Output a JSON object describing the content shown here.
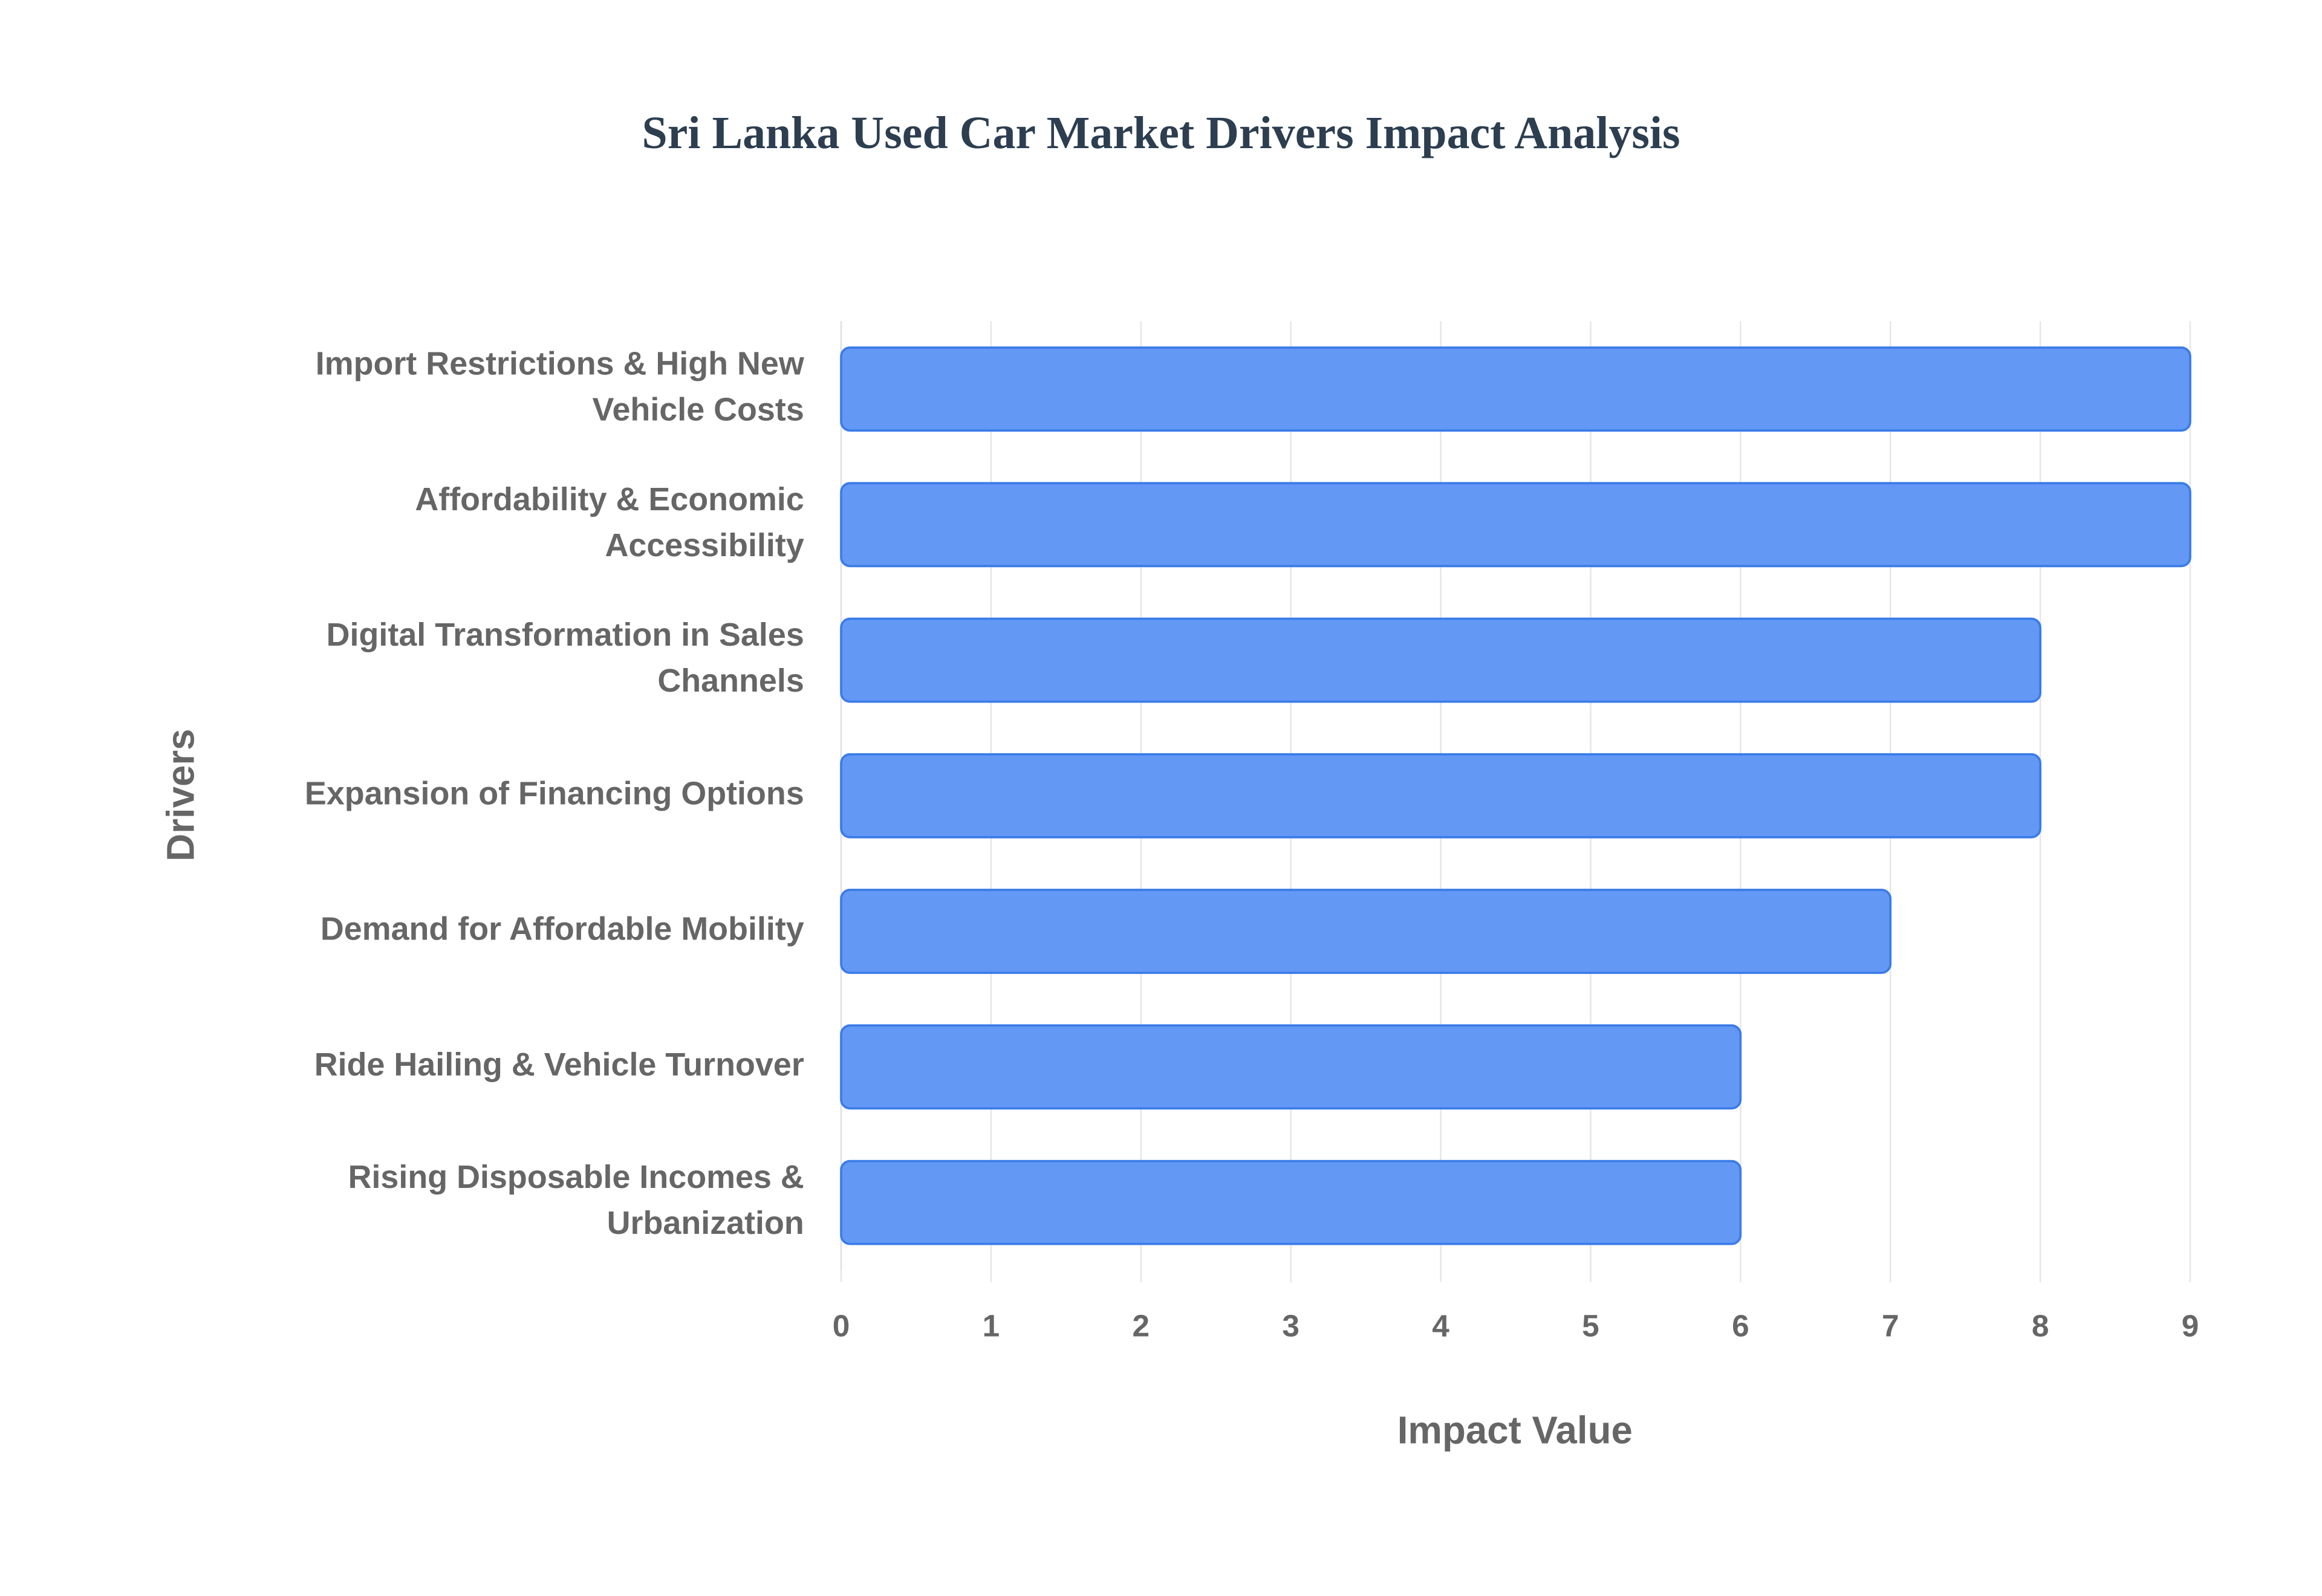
{
  "chart_data": {
    "type": "bar",
    "orientation": "horizontal",
    "title": "Sri Lanka Used Car Market Drivers Impact Analysis",
    "x_label": "Impact Value",
    "y_label": "Drivers",
    "categories": [
      "Import Restrictions & High New Vehicle Costs",
      "Affordability & Economic Accessibility",
      "Digital Transformation in Sales Channels",
      "Expansion of Financing Options",
      "Demand for Affordable Mobility",
      "Ride Hailing & Vehicle Turnover",
      "Rising Disposable Incomes & Urbanization"
    ],
    "values": [
      9,
      9,
      8,
      8,
      7,
      6,
      6
    ],
    "color": "#6399f5",
    "xlim": [
      0,
      9
    ],
    "xticks": [
      0,
      1,
      2,
      3,
      4,
      5,
      6,
      7,
      8,
      9
    ],
    "grid": true
  }
}
